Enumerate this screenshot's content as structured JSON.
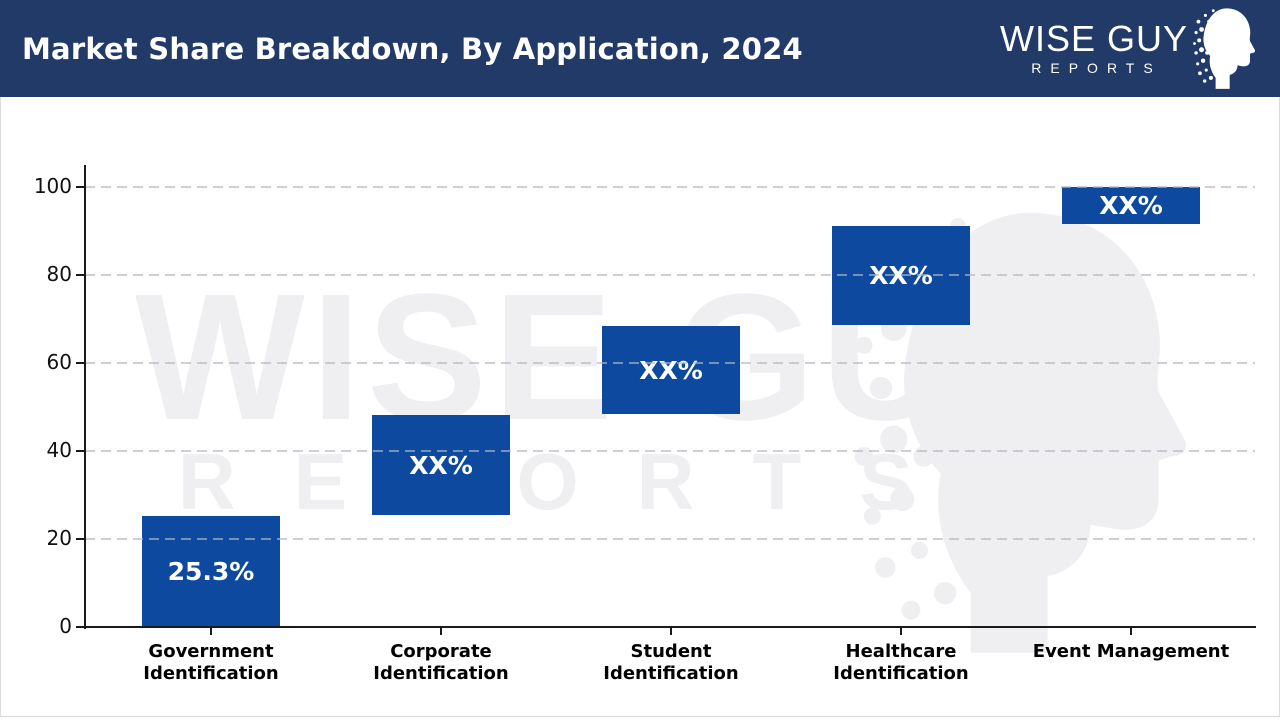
{
  "header": {
    "title": "Market Share Breakdown, By Application, 2024",
    "brand": {
      "name": "WISE GUY",
      "sub": "REPORTS"
    }
  },
  "watermark": {
    "line1": "WISE GUY",
    "line2": "REPORTS"
  },
  "colors": {
    "header_bg": "#213a67",
    "bar_fill": "#0d4a9f",
    "axis": "#1a1a1a",
    "grid": "#d8dadd",
    "bar_label_text": "#ffffff",
    "watermark": "#efeff2"
  },
  "chart_data": {
    "type": "bar",
    "subtype": "floating-waterfall",
    "title": "Market Share Breakdown, By Application, 2024",
    "xlabel": "",
    "ylabel": "",
    "ylim": [
      0,
      105
    ],
    "yticks": [
      0,
      20,
      40,
      60,
      80,
      100
    ],
    "grid": "horizontal-dashed",
    "legend": "none",
    "categories": [
      "Government Identification",
      "Corporate Identification",
      "Student Identification",
      "Healthcare Identification",
      "Event Management"
    ],
    "bars": [
      {
        "category": "Government Identification",
        "lines": [
          "Government",
          "Identification"
        ],
        "start": 0,
        "end": 25.3,
        "label": "25.3%"
      },
      {
        "category": "Corporate Identification",
        "lines": [
          "Corporate",
          "Identification"
        ],
        "start": 25.5,
        "end": 48.1,
        "label": "XX%"
      },
      {
        "category": "Student Identification",
        "lines": [
          "Student",
          "Identification"
        ],
        "start": 48.3,
        "end": 68.3,
        "label": "XX%"
      },
      {
        "category": "Healthcare Identification",
        "lines": [
          "Healthcare",
          "Identification"
        ],
        "start": 68.6,
        "end": 91.2,
        "label": "XX%"
      },
      {
        "category": "Event Management",
        "lines": [
          "Event Management"
        ],
        "start": 91.6,
        "end": 100,
        "label": "XX%"
      }
    ]
  }
}
